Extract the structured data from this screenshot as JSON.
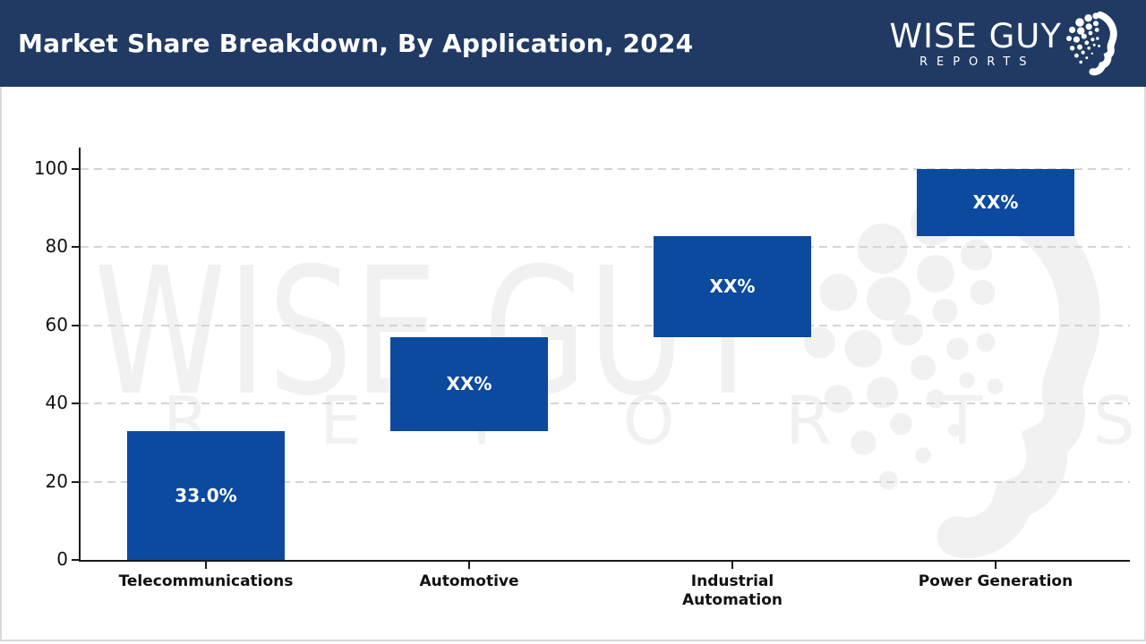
{
  "header": {
    "title": "Market Share Breakdown, By Application, 2024",
    "brand": {
      "name": "WISE GUY",
      "sub": "REPORTS"
    }
  },
  "watermark": {
    "main": "WISE GUY",
    "sub": "R E P O R T S"
  },
  "chart_data": {
    "type": "bar",
    "variant": "waterfall",
    "title": "Market Share Breakdown, By Application, 2024",
    "categories": [
      "Telecommunications",
      "Automotive",
      "Industrial\nAutomation",
      "Power Generation"
    ],
    "segments": [
      {
        "category": "Telecommunications",
        "start": 0,
        "end": 33,
        "value": 33.0,
        "label": "33.0%"
      },
      {
        "category": "Automotive",
        "start": 33,
        "end": 57,
        "value": 24.0,
        "label": "XX%"
      },
      {
        "category": "Industrial Automation",
        "start": 57,
        "end": 82.7,
        "value": 25.7,
        "label": "XX%"
      },
      {
        "category": "Power Generation",
        "start": 82.7,
        "end": 100,
        "value": 17.3,
        "label": "XX%"
      }
    ],
    "yticks": [
      0,
      20,
      40,
      60,
      80,
      100
    ],
    "ylim": [
      0,
      105.5
    ],
    "xlabel": "",
    "ylabel": "",
    "grid": "horizontal-dashed",
    "legend": "none",
    "colors": {
      "header_bg": "#203a64",
      "bar": "#0b4a9e",
      "bar_label": "#ffffff",
      "grid": "#d4d4d4",
      "axis": "#1a1a1a",
      "watermark": "#f1f1f1"
    }
  }
}
